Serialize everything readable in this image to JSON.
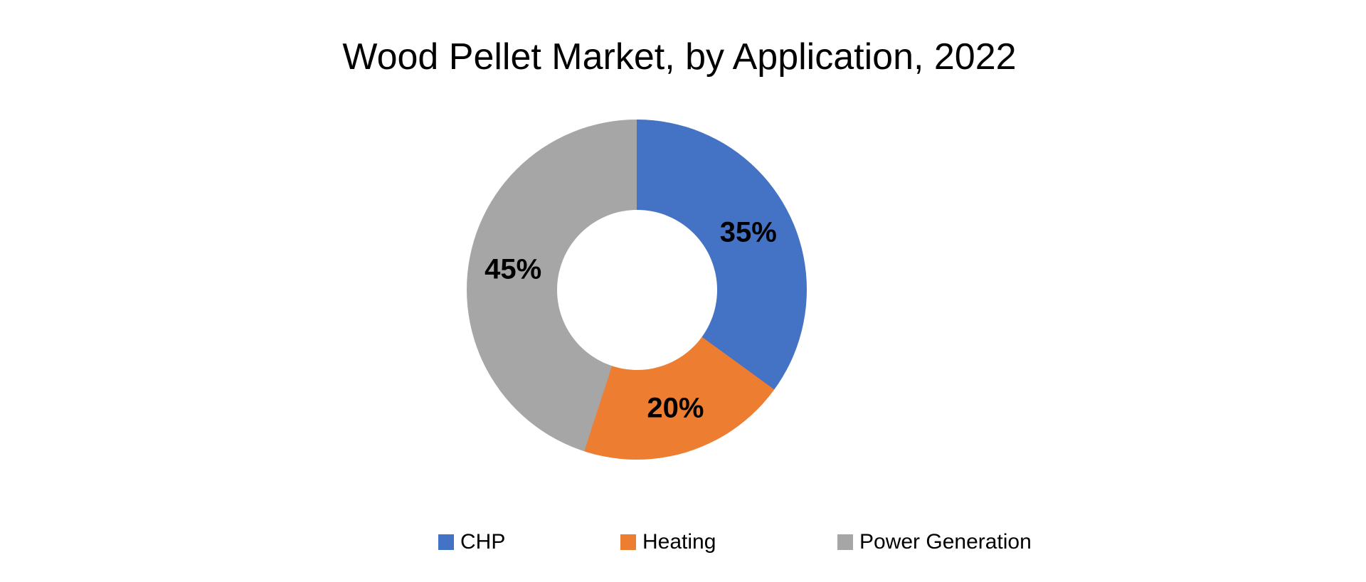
{
  "chart_data": {
    "type": "pie",
    "subtype": "donut",
    "title": "Wood Pellet Market, by Application, 2022",
    "start_angle_deg": 0,
    "direction": "clockwise",
    "hole_ratio": 0.47,
    "categories": [
      "CHP",
      "Heating",
      "Power Generation"
    ],
    "values": [
      35,
      20,
      45
    ],
    "slices": [
      {
        "name": "CHP",
        "value": 35,
        "label": "35%",
        "color": "#4472C4"
      },
      {
        "name": "Heating",
        "value": 20,
        "label": "20%",
        "color": "#ED7D31"
      },
      {
        "name": "Power Generation",
        "value": 45,
        "label": "45%",
        "color": "#A6A6A6"
      }
    ],
    "data_label_color": "#000000",
    "legend_position": "bottom",
    "background_color": "#FFFFFF"
  }
}
